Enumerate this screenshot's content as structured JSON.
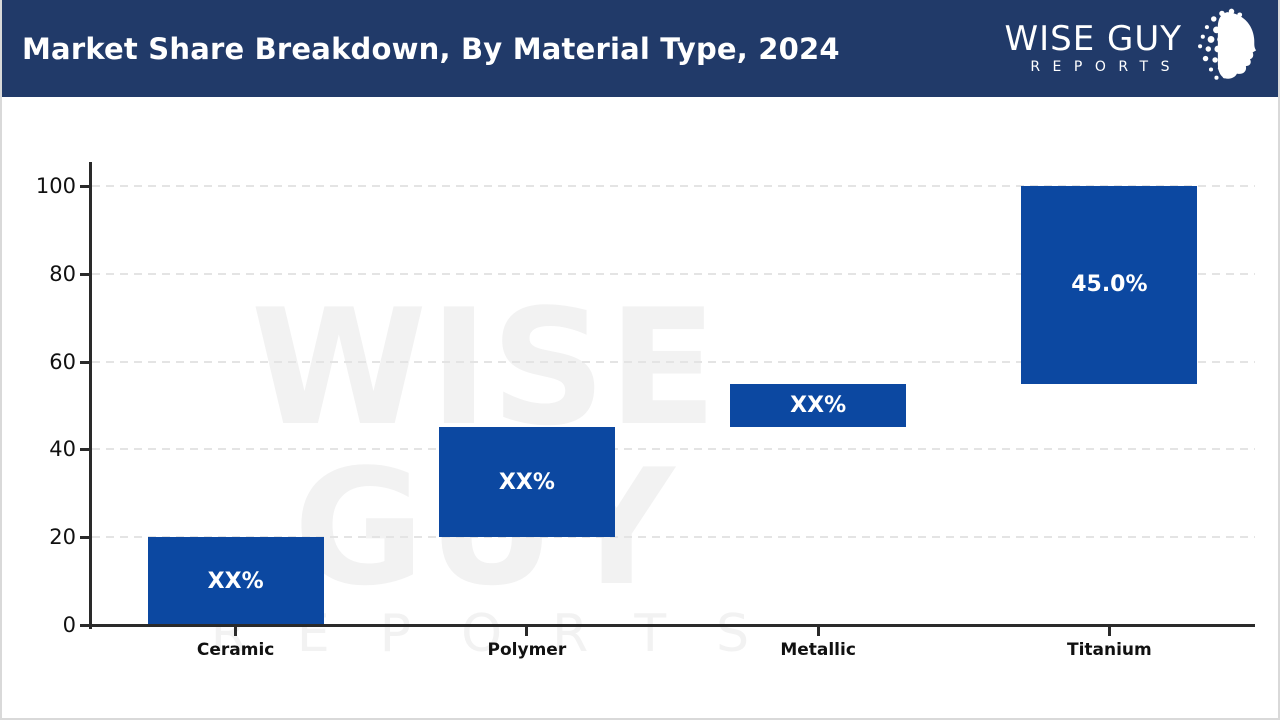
{
  "header": {
    "title": "Market Share Breakdown, By Material Type, 2024",
    "logo": {
      "line1": "WISE GUY",
      "line2": "REPORTS"
    }
  },
  "watermark": {
    "line1": "WISE GUY",
    "line2": "REPORTS"
  },
  "colors": {
    "header_bg": "#213a69",
    "bar_fill": "#0c48a1",
    "bar_label": "#ffffff",
    "axis": "#2a2a2a",
    "grid": "#e4e4e4",
    "watermark": "#f2f2f2"
  },
  "chart_data": {
    "type": "bar",
    "variant": "floating-waterfall",
    "title": "Market Share Breakdown, By Material Type, 2024",
    "categories": [
      "Ceramic",
      "Polymer",
      "Metallic",
      "Titanium"
    ],
    "bars": [
      {
        "category": "Ceramic",
        "start": 0,
        "end": 20,
        "value": 20,
        "label": "XX%"
      },
      {
        "category": "Polymer",
        "start": 20,
        "end": 45,
        "value": 25,
        "label": "XX%"
      },
      {
        "category": "Metallic",
        "start": 45,
        "end": 55,
        "value": 10,
        "label": "XX%"
      },
      {
        "category": "Titanium",
        "start": 55,
        "end": 100,
        "value": 45,
        "label": "45.0%"
      }
    ],
    "ylim": [
      0,
      100
    ],
    "yticks": [
      0,
      20,
      40,
      60,
      80,
      100
    ],
    "xlabel": "",
    "ylabel": "",
    "grid": "horizontal-dashed",
    "legend": "none"
  }
}
